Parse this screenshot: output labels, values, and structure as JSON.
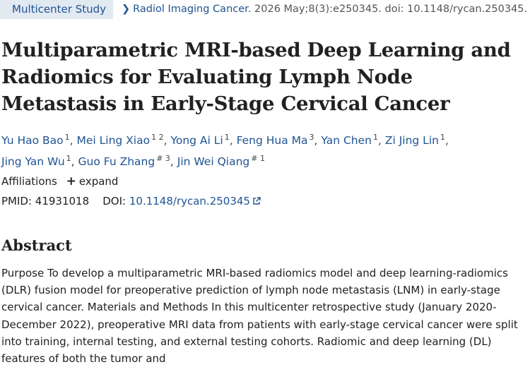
{
  "header": {
    "study_type": "Multicenter Study",
    "journal": "Radiol Imaging Cancer.",
    "citation": " 2026 May;8(3):e250345. doi: 10.1148/rycan.250345."
  },
  "article": {
    "title": "Multiparametric MRI-based Deep Learning and Radiomics for Evaluating Lymph Node Metastasis in Early-Stage Cervical Cancer",
    "authors": [
      {
        "name": "Yu Hao Bao",
        "sup": "1"
      },
      {
        "name": "Mei Ling Xiao",
        "sup": "1 2"
      },
      {
        "name": "Yong Ai Li",
        "sup": "1"
      },
      {
        "name": "Feng Hua Ma",
        "sup": "3"
      },
      {
        "name": "Yan Chen",
        "sup": "1"
      },
      {
        "name": "Zi Jing Lin",
        "sup": "1"
      },
      {
        "name": "Jing Yan Wu",
        "sup": "1"
      },
      {
        "name": "Guo Fu Zhang",
        "sup": "# 3"
      },
      {
        "name": "Jin Wei Qiang",
        "sup": "# 1"
      }
    ],
    "affiliations_label": "Affiliations",
    "expand_label": "expand",
    "pmid_label": "PMID:",
    "pmid": "41931018",
    "doi_label": "DOI:",
    "doi": "10.1148/rycan.250345",
    "abstract_heading": "Abstract",
    "abstract_text": "Purpose To develop a multiparametric MRI-based radiomics model and deep learning-radiomics (DLR) fusion model for preoperative prediction of lymph node metastasis (LNM) in early-stage cervical cancer. Materials and Methods In this multicenter retrospective study (January 2020-December 2022), preoperative MRI data from patients with early-stage cervical cancer were split into training, internal testing, and external testing cohorts. Radiomic and deep learning (DL) features of both the tumor and"
  },
  "colors": {
    "link": "#205493",
    "badge_bg": "#e1e9f1",
    "text": "#212121"
  },
  "icons": {
    "breadcrumb": "chevron-right-icon",
    "expand": "plus-icon",
    "external": "external-link-icon"
  }
}
